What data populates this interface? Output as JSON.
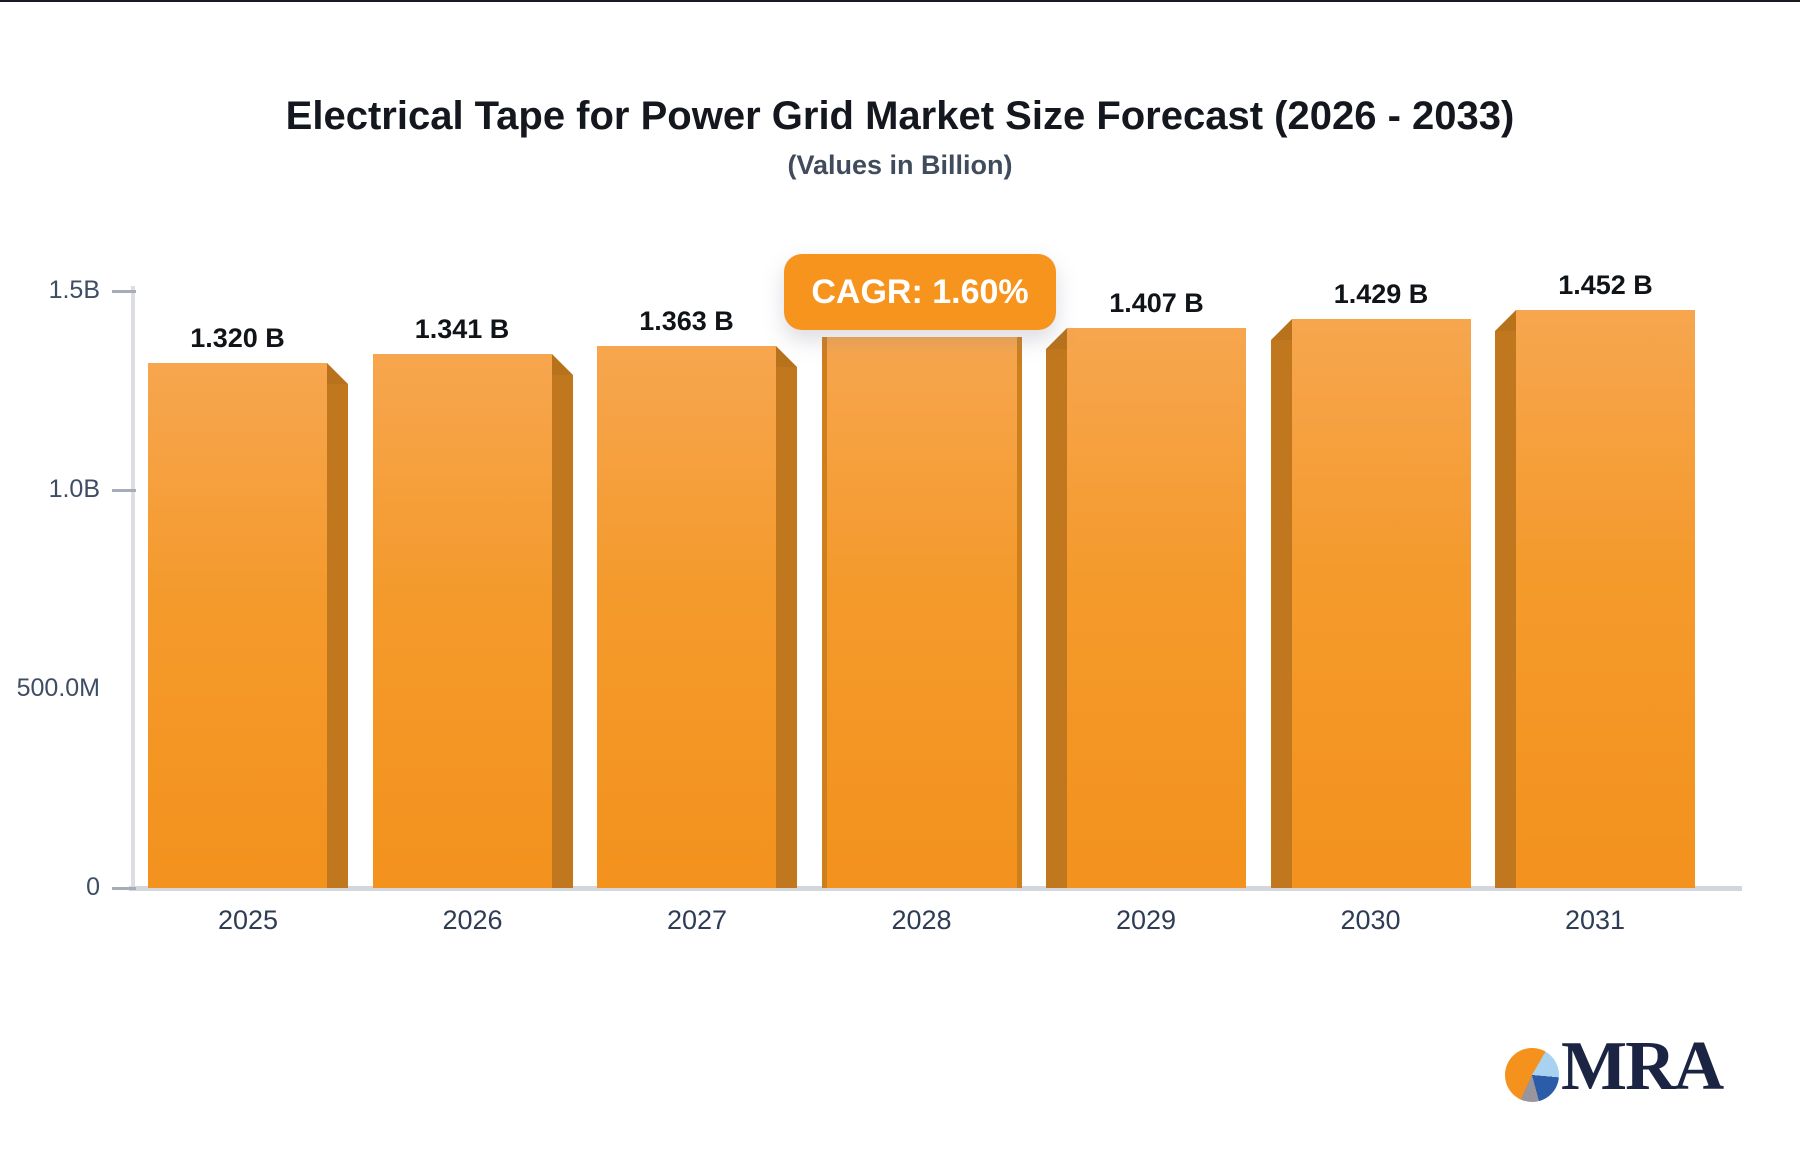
{
  "header": {
    "title": "Electrical Tape for Power Grid Market Size Forecast (2026 - 2033)",
    "subtitle": "(Values in Billion)"
  },
  "cagr_badge": {
    "label": "CAGR: 1.60%",
    "background": "#F7941E",
    "text_color": "#FFFFFF"
  },
  "chart_data": {
    "type": "bar",
    "title": "Electrical Tape for Power Grid Market Size Forecast (2026 - 2033)",
    "subtitle": "(Values in Billion)",
    "categories": [
      "2025",
      "2026",
      "2027",
      "2028",
      "2029",
      "2030",
      "2031"
    ],
    "values": [
      1.32,
      1.341,
      1.363,
      1.385,
      1.407,
      1.429,
      1.452
    ],
    "bar_labels": [
      "1.320 B",
      "1.341 B",
      "1.363 B",
      "",
      "1.407 B",
      "1.429 B",
      "1.452 B"
    ],
    "shade_side": [
      "right",
      "right",
      "right",
      "none",
      "left",
      "left",
      "left"
    ],
    "y_ticks": [
      {
        "label": "1.5B",
        "value": 1.5,
        "tick": true
      },
      {
        "label": "1.0B",
        "value": 1.0,
        "tick": true
      },
      {
        "label": "500.0M",
        "value": 0.5,
        "tick": false
      },
      {
        "label": "0",
        "value": 0,
        "tick": true
      }
    ],
    "ylim": [
      0,
      1.5
    ],
    "xlabel": "",
    "ylabel": "",
    "grid": false,
    "legend": false,
    "colors": {
      "bar_body": "#F49A2C",
      "bar_body_top": "#F7A64F",
      "bar_shade": "#C1771D",
      "axis_line": "#D3D6DB",
      "tick_mark": "#A6ADB8",
      "tick_text": "#3E4D63",
      "category_text": "#2F3C55",
      "value_text": "#101418"
    }
  },
  "logo": {
    "text": "MRA",
    "text_color": "#1B2442",
    "pie_colors": {
      "orange": "#F5921E",
      "light_blue": "#A9D2F0",
      "blue": "#2B5CA8",
      "gray": "#9A949C"
    }
  }
}
